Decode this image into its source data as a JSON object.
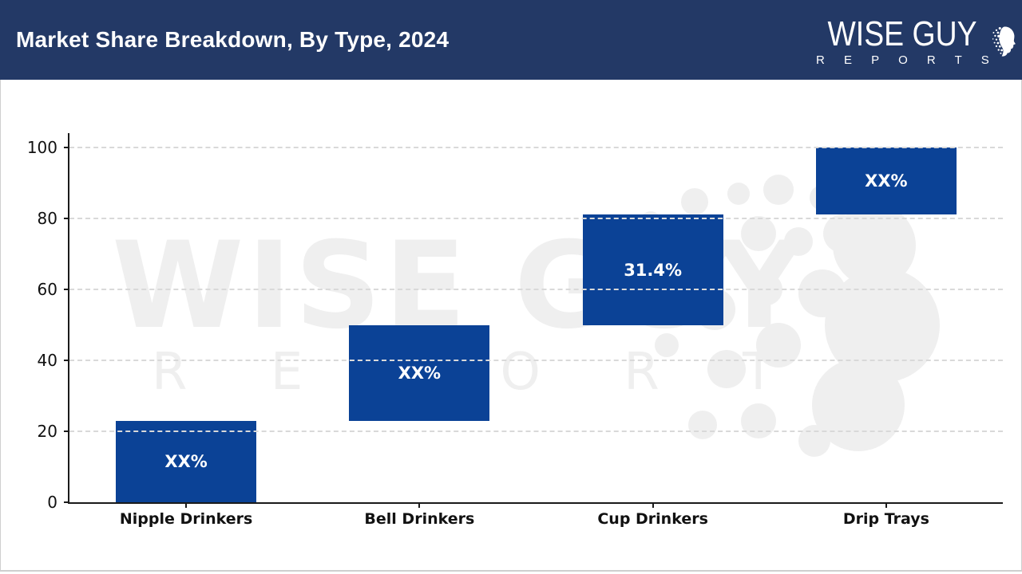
{
  "header": {
    "title": "Market Share Breakdown, By Type, 2024",
    "logo": {
      "line1": "WISE GUY",
      "line2": "R E P O R T S"
    }
  },
  "watermark": {
    "line1": "WISE GUY",
    "line2": "R E P O R T S"
  },
  "colors": {
    "header_bg": "#233966",
    "bar": "#0b4296",
    "bar_label": "#ffffff",
    "grid": "#d9d9d9",
    "axis": "#1a1a1a",
    "watermark": "#efefef",
    "frame_border": "#cfcfcf"
  },
  "chart_data": {
    "type": "bar",
    "subtype": "waterfall-floating-bars",
    "title": "Market Share Breakdown, By Type, 2024",
    "categories": [
      "Nipple Drinkers",
      "Bell Drinkers",
      "Cup Drinkers",
      "Drip Trays"
    ],
    "segments": [
      {
        "category": "Nipple Drinkers",
        "start": 0,
        "end": 23.0,
        "label": "XX%"
      },
      {
        "category": "Bell Drinkers",
        "start": 23.0,
        "end": 49.8,
        "label": "XX%"
      },
      {
        "category": "Cup Drinkers",
        "start": 49.8,
        "end": 81.2,
        "label": "31.4%"
      },
      {
        "category": "Drip Trays",
        "start": 81.2,
        "end": 100.0,
        "label": "XX%"
      }
    ],
    "xlabel": "",
    "ylabel": "",
    "ylim": [
      0,
      100
    ],
    "yticks": [
      0,
      20,
      40,
      60,
      80,
      100
    ],
    "grid": "horizontal-dashed",
    "legend": "none"
  }
}
